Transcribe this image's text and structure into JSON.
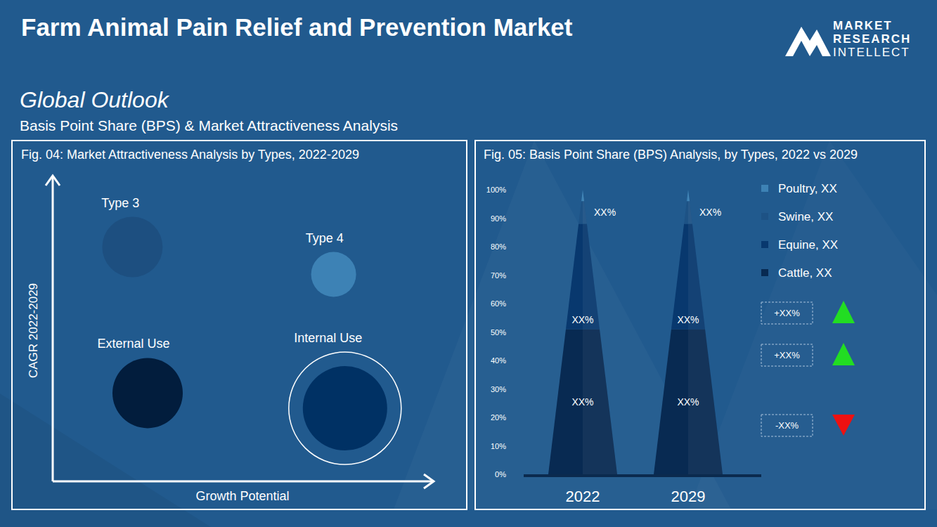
{
  "header": {
    "title": "Farm Animal Pain Relief and Prevention Market",
    "logo": [
      "MARKET",
      "RESEARCH",
      "INTELLECT"
    ],
    "section": "Global Outlook",
    "subtitle": "Basis Point Share (BPS) & Market Attractiveness  Analysis"
  },
  "chart_data": [
    {
      "type": "bubble",
      "title": "Fig. 04: Market Attractiveness Analysis by Types, 2022-2029",
      "x_label": "Growth Potential",
      "y_label": "CAGR 2022-2029",
      "xlim": [
        0,
        100
      ],
      "ylim": [
        0,
        100
      ],
      "tick_labels": false,
      "series": [
        {
          "name": "Type 3",
          "color": "#1d4f80",
          "x": [
            21
          ],
          "values": [
            77
          ],
          "sizes": [
            43
          ]
        },
        {
          "name": "Type 4",
          "color": "#3d82b5",
          "x": [
            74
          ],
          "values": [
            68
          ],
          "sizes": [
            32
          ]
        },
        {
          "name": "External Use",
          "color": "#021d3d",
          "x": [
            25
          ],
          "values": [
            29
          ],
          "sizes": [
            50
          ]
        },
        {
          "name": "Internal Use",
          "color": "#003164",
          "x": [
            77
          ],
          "values": [
            24
          ],
          "sizes": [
            60
          ]
        }
      ]
    },
    {
      "type": "bar",
      "stacked": true,
      "title": "Fig. 05: Basis Point Share (BPS) Analysis, by Types, 2022 vs 2029",
      "categories": [
        "2022",
        "2029"
      ],
      "ylim": [
        0,
        100
      ],
      "yticks": [
        {
          "value": 0,
          "label": "0%"
        },
        {
          "value": 10,
          "label": "10%"
        },
        {
          "value": 20,
          "label": "20%"
        },
        {
          "value": 30,
          "label": "30%"
        },
        {
          "value": 40,
          "label": "40%"
        },
        {
          "value": 50,
          "label": "50%"
        },
        {
          "value": 60,
          "label": "60%"
        },
        {
          "value": 70,
          "label": "70%"
        },
        {
          "value": 80,
          "label": "80%"
        },
        {
          "value": 90,
          "label": "90%"
        },
        {
          "value": 100,
          "label": "100%"
        }
      ],
      "grid": false,
      "legend": "right",
      "data_labels": true,
      "series": [
        {
          "name": "Cattle, XX",
          "color": "#082a52",
          "values": [
            51,
            51
          ],
          "value_labels": [
            "XX%",
            "XX%"
          ]
        },
        {
          "name": "Equine, XX",
          "color": "#08386e",
          "values": [
            37,
            37
          ],
          "value_labels": [
            "XX%",
            "XX%"
          ]
        },
        {
          "name": "Swine, XX",
          "color": "#1d5285",
          "values": [
            8,
            8
          ],
          "value_labels": [
            "XX%",
            "XX%"
          ]
        },
        {
          "name": "Poultry, XX",
          "color": "#3d82b5",
          "values": [
            4,
            4
          ]
        }
      ],
      "annotations": [
        "+XX%",
        "+XX%",
        "-XX%"
      ]
    }
  ]
}
